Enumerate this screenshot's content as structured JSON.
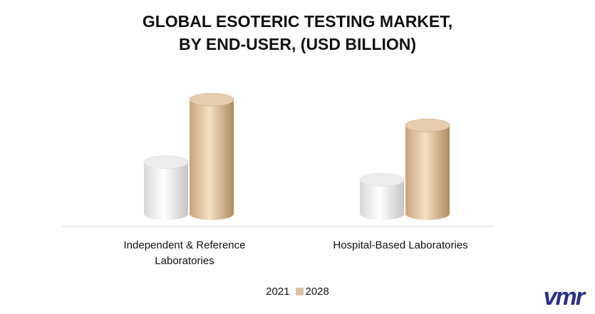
{
  "chart_data": {
    "type": "cylinder-bar",
    "title": [
      "GLOBAL ESOTERIC TESTING MARKET,",
      "BY END-USER, (USD BILLION)"
    ],
    "categories": [
      "Independent & Reference Laboratories",
      "Hospital-Based Laboratories"
    ],
    "series": [
      {
        "name": "2021",
        "color": "#f2f2f2",
        "values": [
          7.6,
          5.0
        ]
      },
      {
        "name": "2028",
        "color": "#dcc0a0",
        "values": [
          16.8,
          13.0
        ]
      }
    ],
    "logo": "vmr"
  }
}
